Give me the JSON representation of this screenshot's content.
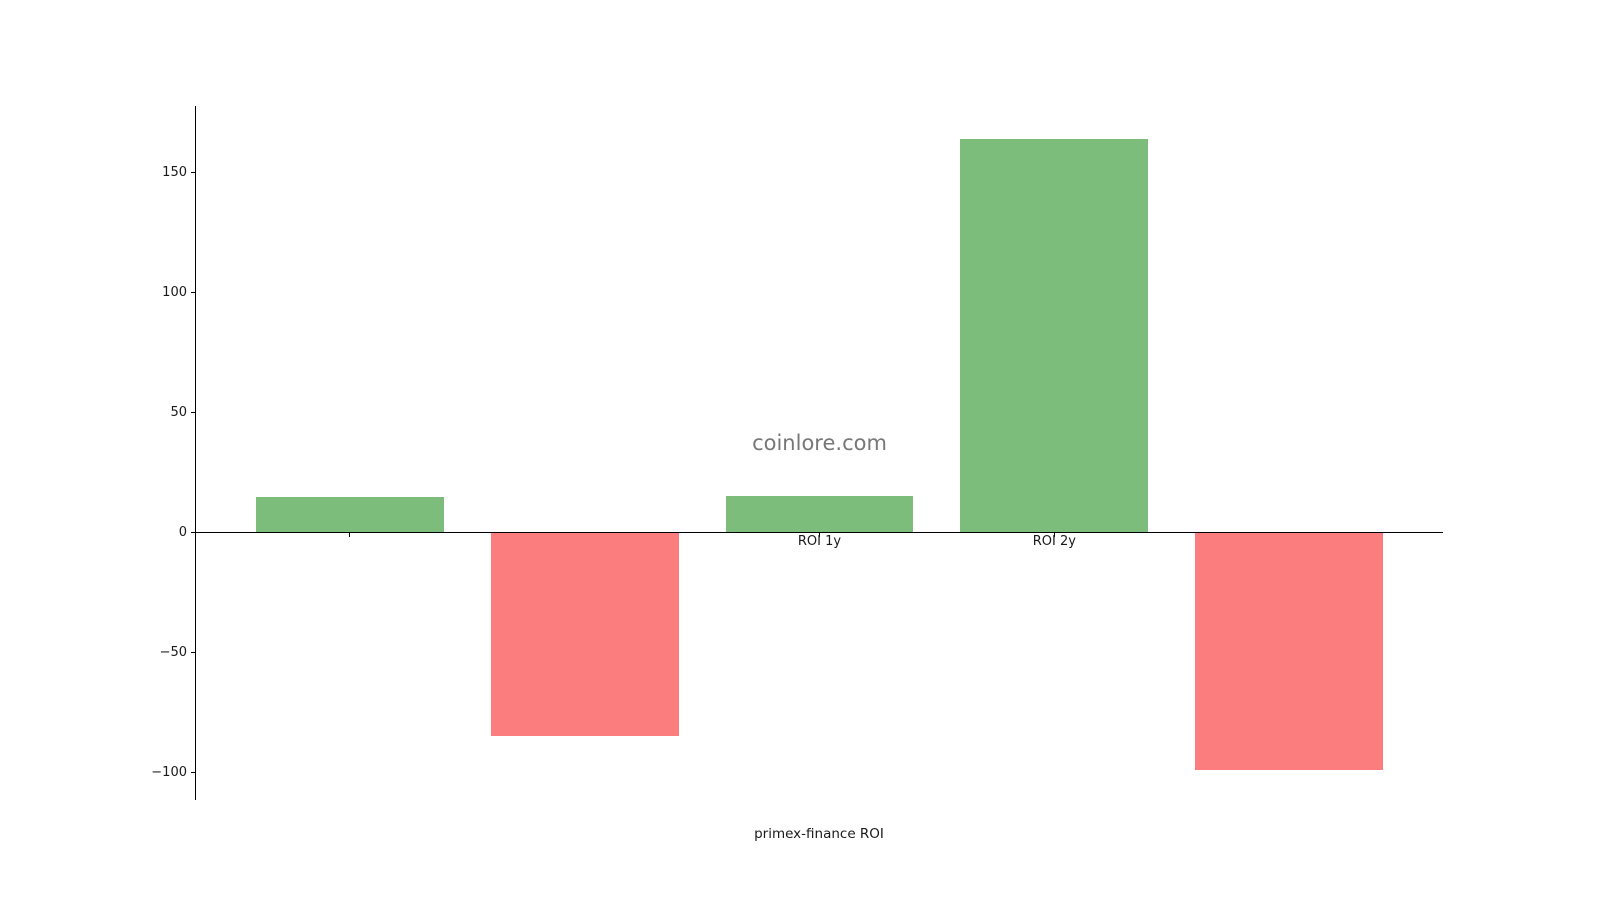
{
  "figure": {
    "watermark": "coinlore.com"
  },
  "chart_data": {
    "type": "bar",
    "title": "",
    "xlabel": "primex-finance ROI",
    "ylabel": "",
    "categories": [
      "",
      "",
      "ROI 1y",
      "ROI 2y",
      ""
    ],
    "values": [
      14.6,
      -84.6,
      15.0,
      163.8,
      -98.8
    ],
    "positive_color": "#7cbd7c",
    "negative_color": "#fc7d7d",
    "axis_color": "#000000",
    "tick_label_color": "#1a1a1a",
    "watermark_color": "#777777",
    "ylim": [
      -111,
      177.6
    ],
    "yticks": [
      {
        "value": 150,
        "label": "150"
      },
      {
        "value": 100,
        "label": "100"
      },
      {
        "value": 50,
        "label": "50"
      },
      {
        "value": 0,
        "label": "0"
      },
      {
        "value": -50,
        "label": "−50"
      },
      {
        "value": -100,
        "label": "−100"
      }
    ],
    "grid": false,
    "legend": null
  }
}
